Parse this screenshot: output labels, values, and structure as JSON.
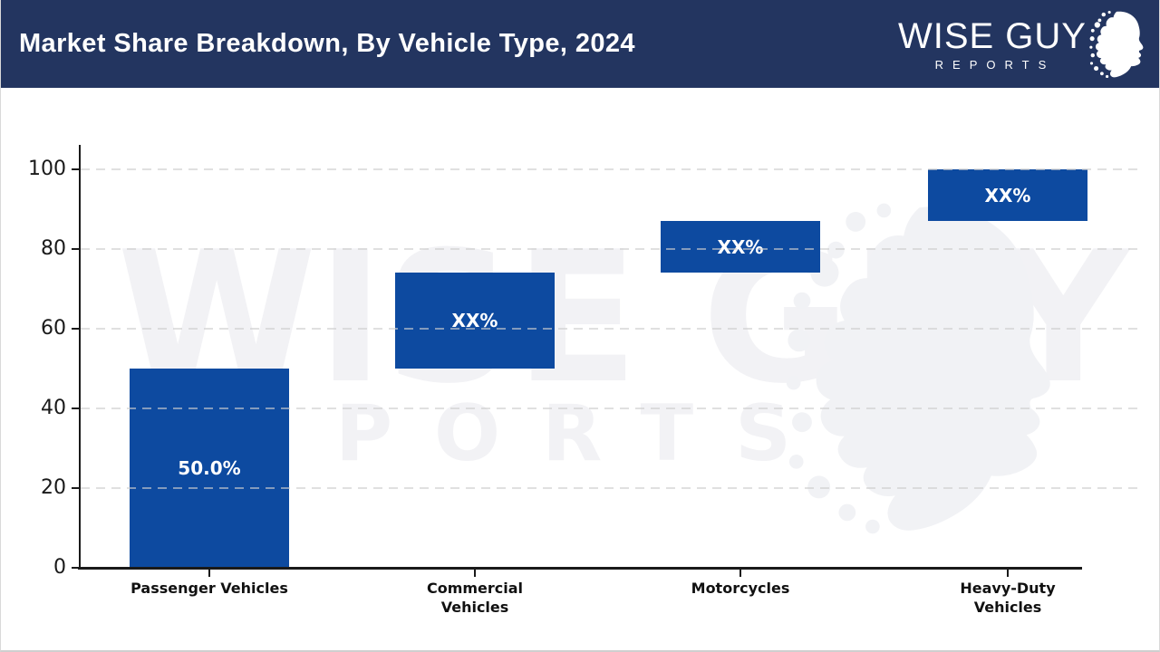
{
  "header": {
    "title": "Market Share Breakdown, By Vehicle Type, 2024",
    "bg_color": "#233560",
    "logo": {
      "line1": "WISE GUY",
      "line2": "REPORTS"
    }
  },
  "watermark": {
    "line1": "WISE GUY",
    "line2": "REPORTS"
  },
  "chart_data": {
    "type": "bar",
    "subtype": "waterfall",
    "title": "Market Share Breakdown, By Vehicle Type, 2024",
    "categories": [
      "Passenger Vehicles",
      "Commercial\nVehicles",
      "Motorcycles",
      "Heavy-Duty\nVehicles"
    ],
    "series": [
      {
        "name": "Market Share (%)",
        "values": [
          {
            "category": "Passenger Vehicles",
            "start": 0,
            "end": 50,
            "label": "50.0%"
          },
          {
            "category": "Commercial Vehicles",
            "start": 50,
            "end": 74,
            "label": "XX%"
          },
          {
            "category": "Motorcycles",
            "start": 74,
            "end": 87,
            "label": "XX%"
          },
          {
            "category": "Heavy-Duty Vehicles",
            "start": 87,
            "end": 100,
            "label": "XX%"
          }
        ]
      }
    ],
    "xlabel": "",
    "ylabel": "",
    "ylim": [
      0,
      105
    ],
    "yticks": [
      0,
      20,
      40,
      60,
      80,
      100
    ],
    "grid": "horizontal-dashed",
    "legend": "none",
    "bar_color": "#0d4aa0",
    "bar_label_color": "#ffffff",
    "gridline_color": "#d9d9d9"
  }
}
